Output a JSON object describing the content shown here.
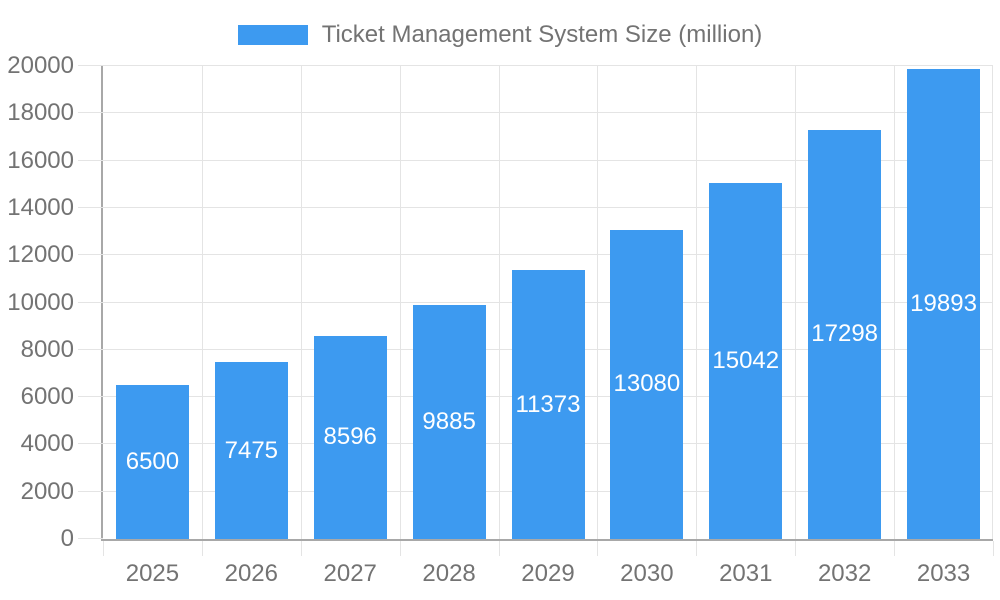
{
  "chart_data": {
    "type": "bar",
    "title": "Ticket Management System Size (million)",
    "categories": [
      "2025",
      "2026",
      "2027",
      "2028",
      "2029",
      "2030",
      "2031",
      "2032",
      "2033"
    ],
    "values": [
      6500,
      7475,
      8596,
      9885,
      11373,
      13080,
      15042,
      17298,
      19893
    ],
    "bar_value_labels": [
      "6500",
      "7475",
      "8596",
      "9885",
      "11373",
      "13080",
      "15042",
      "17298",
      "19893"
    ],
    "xlabel": "",
    "ylabel": "",
    "ylim": [
      0,
      20000
    ],
    "ytick_step": 2000,
    "yticks": [
      0,
      2000,
      4000,
      6000,
      8000,
      10000,
      12000,
      14000,
      16000,
      18000,
      20000
    ],
    "grid": true,
    "legend_position": "top",
    "value_labels_inside_bars": true
  },
  "colors": {
    "bar": "#3D9AF0",
    "bar_label_text": "#FFFFFF",
    "axis_text": "#737373",
    "legend_text": "#737373",
    "gridline": "#E4E4E4",
    "axis_line": "#A8A8A8",
    "background": "#FFFFFF"
  }
}
